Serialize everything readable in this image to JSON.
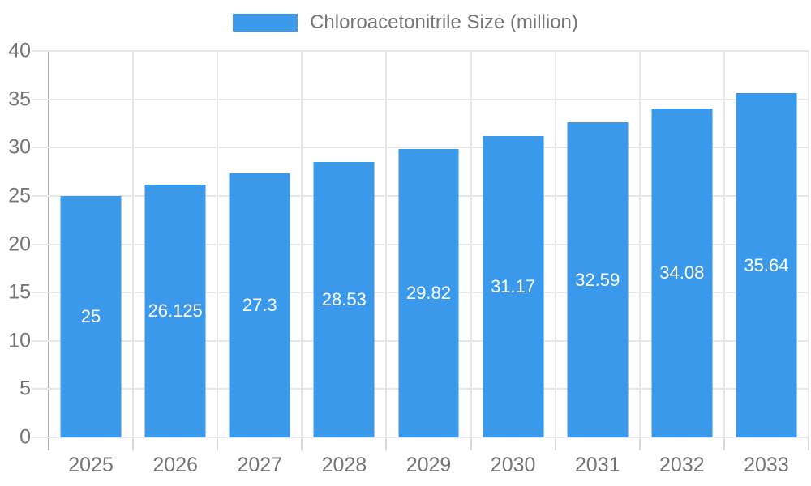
{
  "chart_data": {
    "type": "bar",
    "title": "",
    "xlabel": "",
    "ylabel": "",
    "legend": {
      "position": "top",
      "entries": [
        "Chloroacetonitrile Size (million)"
      ]
    },
    "categories": [
      "2025",
      "2026",
      "2027",
      "2028",
      "2029",
      "2030",
      "2031",
      "2032",
      "2033"
    ],
    "series": [
      {
        "name": "Chloroacetonitrile Size (million)",
        "values": [
          25,
          26.125,
          27.3,
          28.53,
          29.82,
          31.17,
          32.59,
          34.08,
          35.64
        ],
        "labels": [
          "25",
          "26.125",
          "27.3",
          "28.53",
          "29.82",
          "31.17",
          "32.59",
          "34.08",
          "35.64"
        ]
      }
    ],
    "ylim": [
      0,
      40
    ],
    "yticks": [
      0,
      5,
      10,
      15,
      20,
      25,
      30,
      35,
      40
    ],
    "grid": "on",
    "bar_label_position": "inside-center",
    "colors": {
      "bar": "#3b99ec",
      "bar_label": "#ffffff",
      "axis_text": "#757575",
      "legend_text": "#757575",
      "grid_line": "#e6e6e6",
      "axis_line": "#b0b0b0",
      "background": "#ffffff"
    }
  }
}
